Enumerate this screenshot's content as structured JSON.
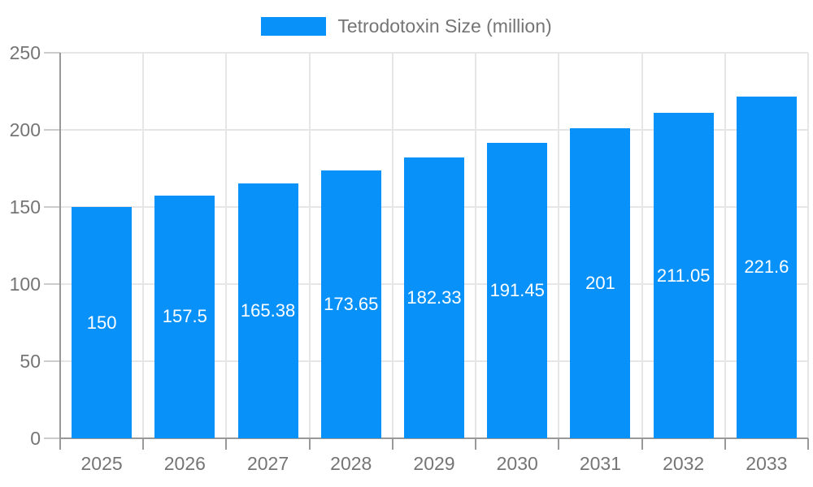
{
  "chart_data": {
    "type": "bar",
    "title": "",
    "legend": "Tetrodotoxin Size (million)",
    "legend_position": "top",
    "categories": [
      "2025",
      "2026",
      "2027",
      "2028",
      "2029",
      "2030",
      "2031",
      "2032",
      "2033"
    ],
    "values": [
      150,
      157.5,
      165.38,
      173.65,
      182.33,
      191.45,
      201,
      211.05,
      221.6
    ],
    "xlabel": "",
    "ylabel": "",
    "ylim": [
      0,
      250
    ],
    "yticks": [
      0,
      50,
      100,
      150,
      200,
      250
    ],
    "grid": true,
    "colors": {
      "bar": "#0991fa",
      "bar_label": "#ffffff",
      "axis_line": "#999999",
      "gridline": "#e6e6e6",
      "y_tick": "#cccccc",
      "x_tick": "#999999",
      "text": "#757575",
      "background": "#ffffff"
    }
  }
}
